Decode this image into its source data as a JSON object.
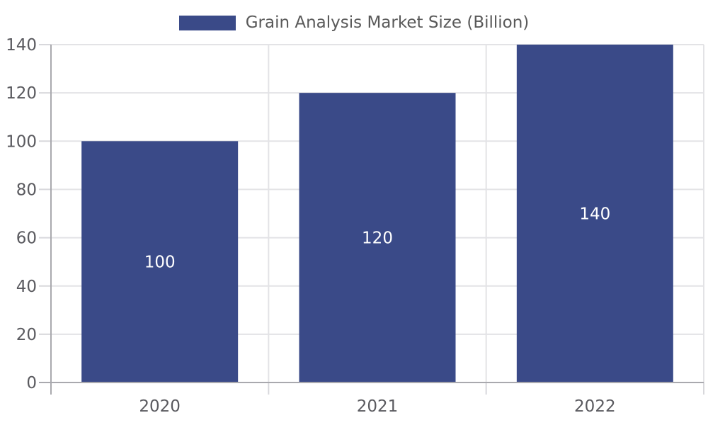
{
  "legend": {
    "label": "Grain Analysis Market Size (Billion)"
  },
  "colors": {
    "bar": "#3A4A88",
    "grid": "#E3E3E6",
    "axis": "#A9A9AE",
    "tick": "#D8D8DC",
    "axis_text": "#5A5A5F",
    "bar_label": "#FFFFFF",
    "background": "#FFFFFF"
  },
  "chart_data": {
    "type": "bar",
    "title": "Grain Analysis Market Size (Billion)",
    "categories": [
      "2020",
      "2021",
      "2022"
    ],
    "values": [
      100,
      120,
      140
    ],
    "bar_labels": [
      "100",
      "120",
      "140"
    ],
    "yticks": [
      0,
      20,
      40,
      60,
      80,
      100,
      120,
      140
    ],
    "ylim": [
      0,
      140
    ],
    "xlabel": "",
    "ylabel": "",
    "grid": true,
    "legend_position": "top",
    "bar_label_position": "center"
  }
}
